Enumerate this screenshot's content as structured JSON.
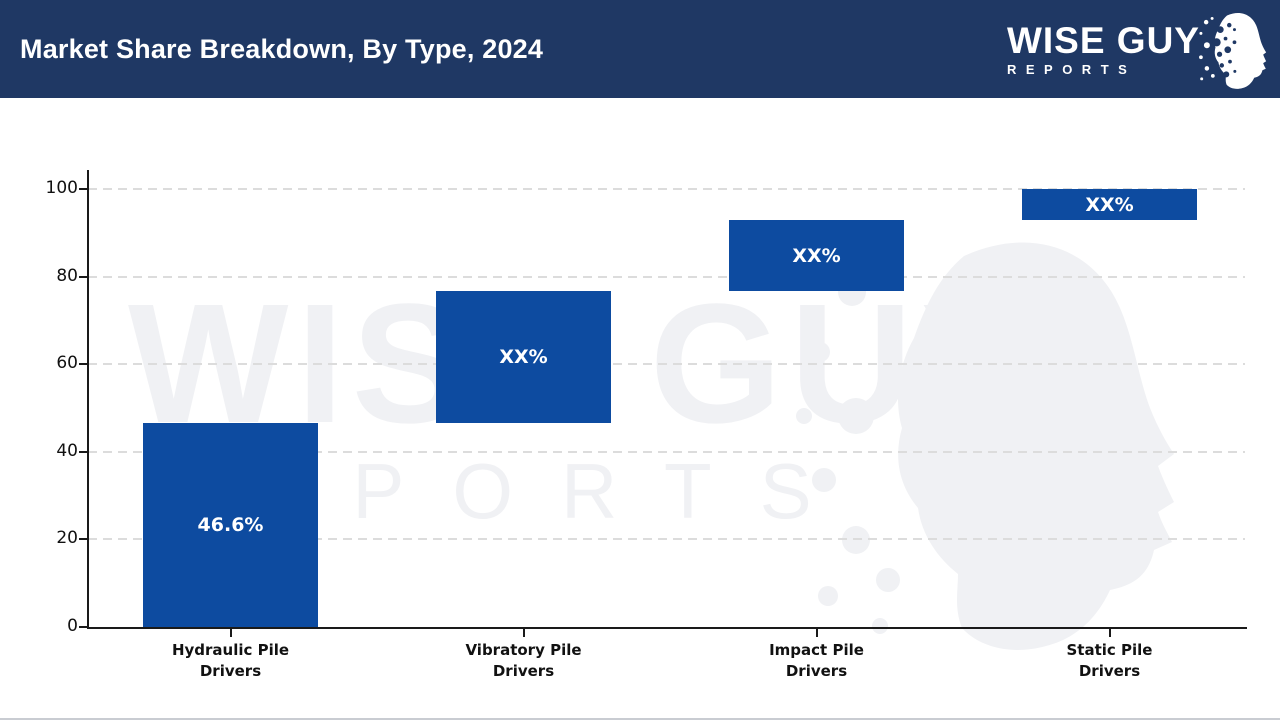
{
  "header": {
    "title": "Market Share Breakdown, By Type, 2024",
    "logo": {
      "line1": "WISE GUY",
      "line2": "REPORTS"
    }
  },
  "watermark": {
    "line1": "WISE GUY",
    "line2": "REPORTS"
  },
  "colors": {
    "header_bg": "#1f3864",
    "bar": "#0d4ba0",
    "bar_label_text": "#ffffff",
    "grid": "#dcdcdc",
    "axis": "#1a1a1a",
    "watermark": "#f0f1f4"
  },
  "chart_data": {
    "type": "bar",
    "variant": "waterfall",
    "title": "Market Share Breakdown, By Type, 2024",
    "categories": [
      "Hydraulic Pile Drivers",
      "Vibratory Pile Drivers",
      "Impact Pile Drivers",
      "Static Pile Drivers"
    ],
    "category_lines": [
      [
        "Hydraulic Pile",
        "Drivers"
      ],
      [
        "Vibratory Pile",
        "Drivers"
      ],
      [
        "Impact Pile",
        "Drivers"
      ],
      [
        "Static Pile",
        "Drivers"
      ]
    ],
    "segments": [
      {
        "category": "Hydraulic Pile Drivers",
        "start": 0,
        "end": 46.6,
        "label": "46.6%"
      },
      {
        "category": "Vibratory Pile Drivers",
        "start": 46.6,
        "end": 76.7,
        "label": "XX%"
      },
      {
        "category": "Impact Pile Drivers",
        "start": 76.7,
        "end": 92.9,
        "label": "XX%"
      },
      {
        "category": "Static Pile Drivers",
        "start": 92.9,
        "end": 100,
        "label": "XX%"
      }
    ],
    "xlabel": "",
    "ylabel": "",
    "ylim": [
      0,
      100
    ],
    "yticks": [
      0,
      20,
      40,
      60,
      80,
      100
    ],
    "grid": "horizontal-dashed",
    "legend": "none"
  }
}
